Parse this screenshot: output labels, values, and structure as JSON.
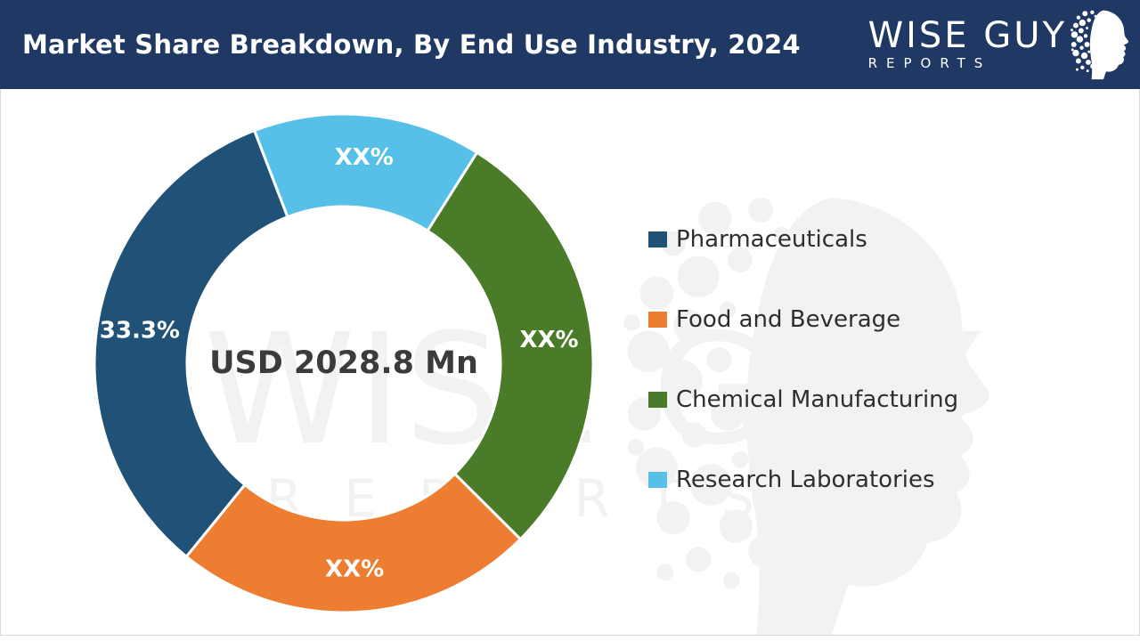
{
  "header": {
    "title": "Market Share Breakdown, By End Use Industry, 2024",
    "logo": {
      "line1": "WISE GUY",
      "line2": "REPORTS"
    }
  },
  "watermark": {
    "line1": "WISE GUY",
    "line2": "REPORTS"
  },
  "chart_data": {
    "type": "donut",
    "title": "Market Share Breakdown, By End Use Industry, 2024",
    "center_label": "USD 2028.8 Mn",
    "start_angle_deg": 111,
    "direction": "counterclockwise",
    "legend_position": "right",
    "segments": [
      {
        "name": "Pharmaceuticals",
        "color": "#205278",
        "value_pct": 33.3,
        "label": "33.3%"
      },
      {
        "name": "Food and Beverage",
        "color": "#ED7D31",
        "value_pct": 23.4,
        "label": "XX%"
      },
      {
        "name": "Chemical Manufacturing",
        "color": "#4A7B28",
        "value_pct": 28.5,
        "label": "XX%"
      },
      {
        "name": "Research Laboratories",
        "color": "#56C0E8",
        "value_pct": 14.8,
        "label": "XX%"
      }
    ]
  },
  "colors": {
    "header_bg": "#1F3864",
    "watermark": "#f2f2f2",
    "center_text": "#3b3b3b",
    "legend_text": "#2e2e2e"
  }
}
